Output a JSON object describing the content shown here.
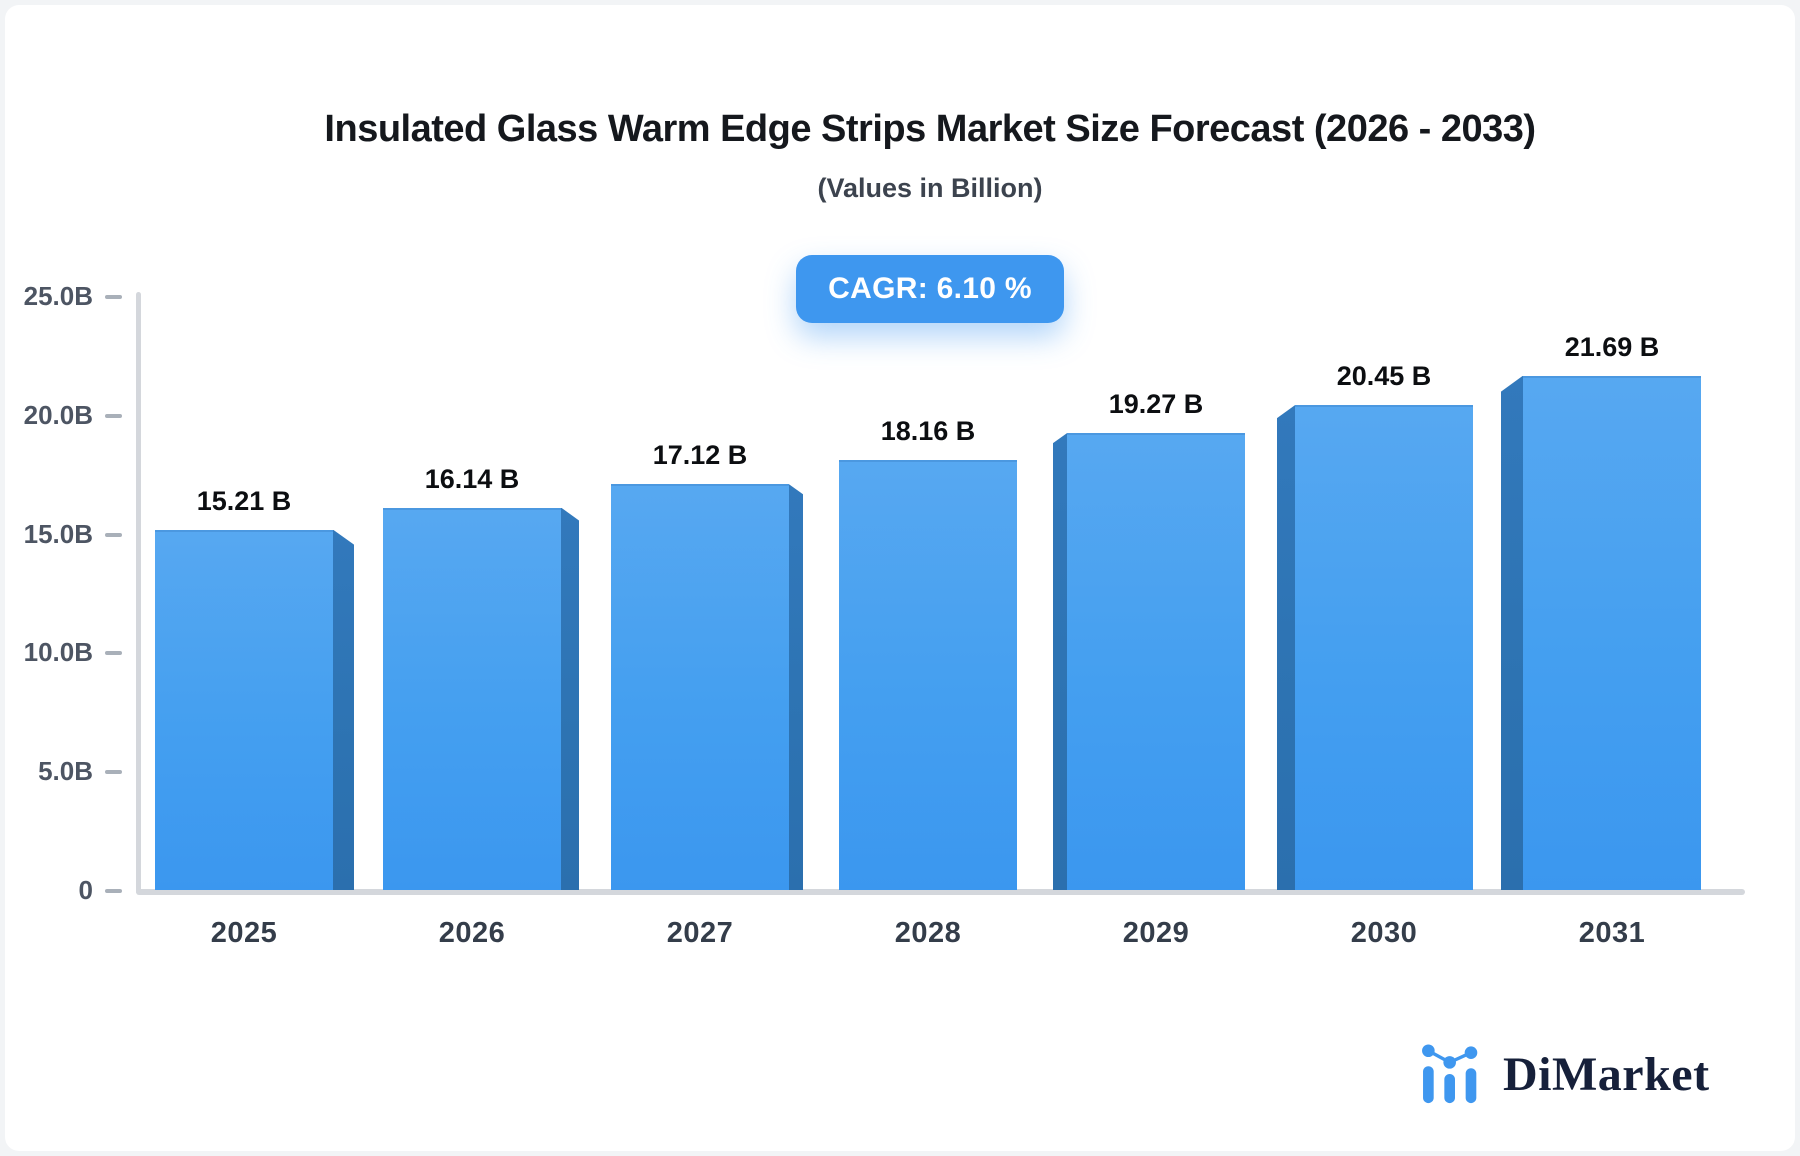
{
  "header": {
    "title": "Insulated Glass Warm Edge Strips Market Size Forecast (2026 - 2033)",
    "subtitle": "(Values in Billion)",
    "cagr_label": "CAGR: 6.10 %"
  },
  "chart_data": {
    "type": "bar",
    "title": "Insulated Glass Warm Edge Strips Market Size Forecast (2026 - 2033)",
    "subtitle": "(Values in Billion)",
    "categories": [
      "2025",
      "2026",
      "2027",
      "2028",
      "2029",
      "2030",
      "2031"
    ],
    "values": [
      15.21,
      16.14,
      17.12,
      18.16,
      19.27,
      20.45,
      21.69
    ],
    "value_labels": [
      "15.21 B",
      "16.14 B",
      "17.12 B",
      "18.16 B",
      "19.27 B",
      "20.45 B",
      "21.69 B"
    ],
    "y_ticks": [
      {
        "label": "25.0B",
        "value": 25
      },
      {
        "label": "20.0B",
        "value": 20
      },
      {
        "label": "15.0B",
        "value": 15
      },
      {
        "label": "10.0B",
        "value": 10
      },
      {
        "label": "5.0B",
        "value": 5
      },
      {
        "label": "0",
        "value": 0
      }
    ],
    "ylim": [
      0,
      25
    ],
    "grid": false,
    "legend": "none",
    "style_3d": true,
    "colors": {
      "bar_face": "#3e97ef",
      "bar_face_light": "#57a8f1",
      "bar_side": "#2d73b2",
      "axis": "#d4d7dc",
      "tick": "#a9b0b9",
      "y_label_text": "#4d5563",
      "x_label_text": "#343d4a",
      "value_text": "#0c0e11",
      "badge_bg": "#3e97ef",
      "badge_text": "#ffffff"
    }
  },
  "branding": {
    "logo_text": "DiMarket",
    "logo_icon": "bar-chart-with-trend-icon",
    "logo_navy": "#16203a",
    "logo_blue": "#3f97ef"
  }
}
